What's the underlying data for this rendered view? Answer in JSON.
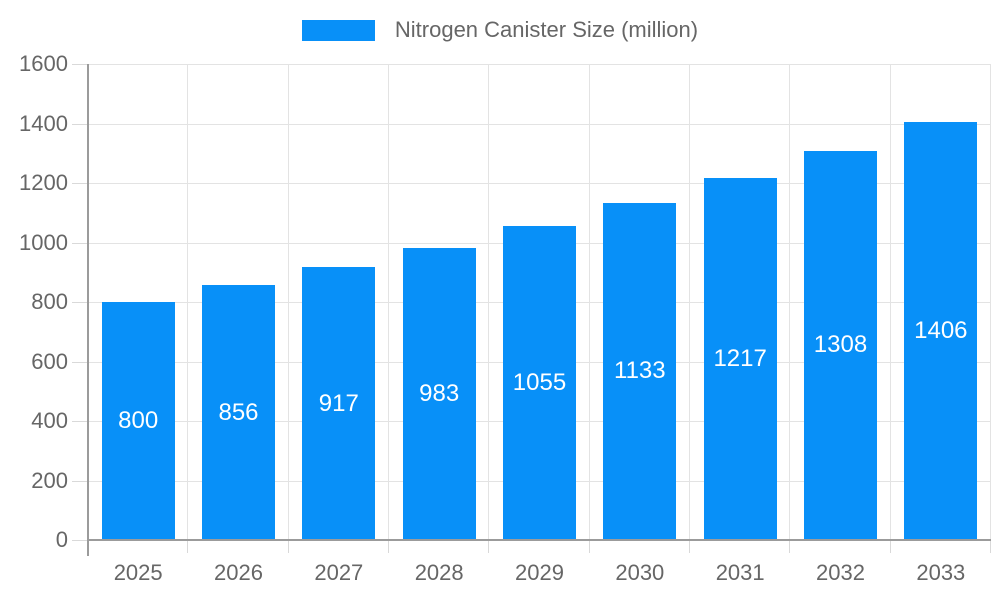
{
  "legend": {
    "label": "Nitrogen Canister Size (million)"
  },
  "chart_data": {
    "type": "bar",
    "title": "Nitrogen Canister Size (million)",
    "series_name": "Nitrogen Canister Size (million)",
    "categories": [
      "2025",
      "2026",
      "2027",
      "2028",
      "2029",
      "2030",
      "2031",
      "2032",
      "2033"
    ],
    "values": [
      800,
      856,
      917,
      983,
      1055,
      1133,
      1217,
      1308,
      1406
    ],
    "value_labels": [
      "800",
      "856",
      "917",
      "983",
      "1055",
      "1133",
      "1217",
      "1308",
      "1406"
    ],
    "ylim": [
      0,
      1600
    ],
    "ytick_step": 200,
    "yticks": [
      0,
      200,
      400,
      600,
      800,
      1000,
      1200,
      1400,
      1600
    ],
    "legend_position": "top",
    "grid": true,
    "colors": {
      "bar": "#0890f8",
      "value_label": "#ffffff",
      "axis_label": "#666666",
      "grid": "#e3e3e3",
      "tick": "#d9d9d9",
      "axis_line": "#9b9b9b"
    }
  }
}
